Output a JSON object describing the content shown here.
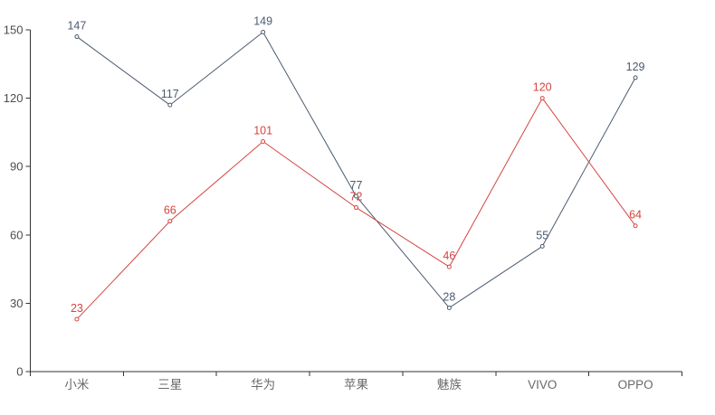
{
  "chart_data": {
    "type": "line",
    "title": "",
    "xlabel": "",
    "ylabel": "",
    "categories": [
      "小米",
      "三星",
      "华为",
      "苹果",
      "魅族",
      "VIVO",
      "OPPO"
    ],
    "series": [
      {
        "name": "dark-slate-series",
        "color": "#4c5b6e",
        "values": [
          147,
          117,
          149,
          77,
          28,
          55,
          129
        ]
      },
      {
        "name": "red-series",
        "color": "#d5453f",
        "values": [
          23,
          66,
          101,
          72,
          46,
          120,
          64
        ]
      }
    ],
    "ylim": [
      0,
      150
    ],
    "yticks": [
      0,
      30,
      60,
      90,
      120,
      150
    ],
    "grid": false,
    "legend": false,
    "show_point_labels": true,
    "marker": "hollow-circle",
    "colors": {
      "axis_line": "#333333",
      "y_tick_label": "#4d4d4d",
      "x_category_label": "#696969",
      "background": "#ffffff"
    }
  }
}
